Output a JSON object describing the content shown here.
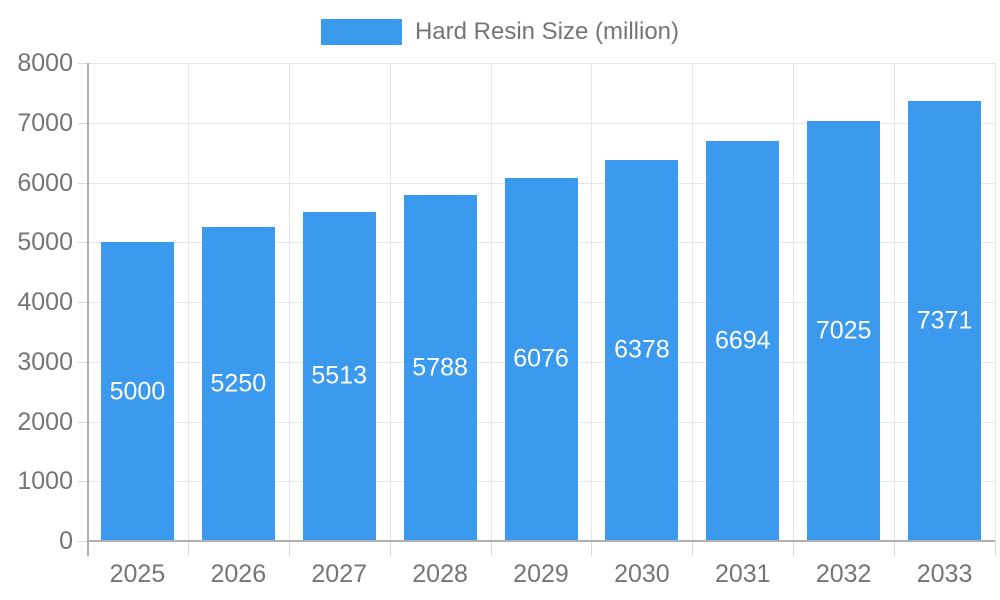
{
  "chart_data": {
    "type": "bar",
    "title": "",
    "xlabel": "",
    "ylabel": "",
    "categories": [
      "2025",
      "2026",
      "2027",
      "2028",
      "2029",
      "2030",
      "2031",
      "2032",
      "2033"
    ],
    "series": [
      {
        "name": "Hard Resin Size (million)",
        "values": [
          5000,
          5250,
          5513,
          5788,
          6076,
          6378,
          6694,
          7025,
          7371
        ]
      }
    ],
    "ylim": [
      0,
      8000
    ],
    "yticks": [
      0,
      1000,
      2000,
      3000,
      4000,
      5000,
      6000,
      7000,
      8000
    ],
    "grid": true,
    "legend_position": "top-center",
    "bar_color": "#3B9AEE",
    "value_label_color": "#FFFFFF",
    "axis_label_color": "#757575",
    "gridline_color": "#E6E6E6",
    "tick_color": "#D9D9D9",
    "axis_line_color": "#B0B0B0",
    "background_color": "#FFFFFF"
  }
}
